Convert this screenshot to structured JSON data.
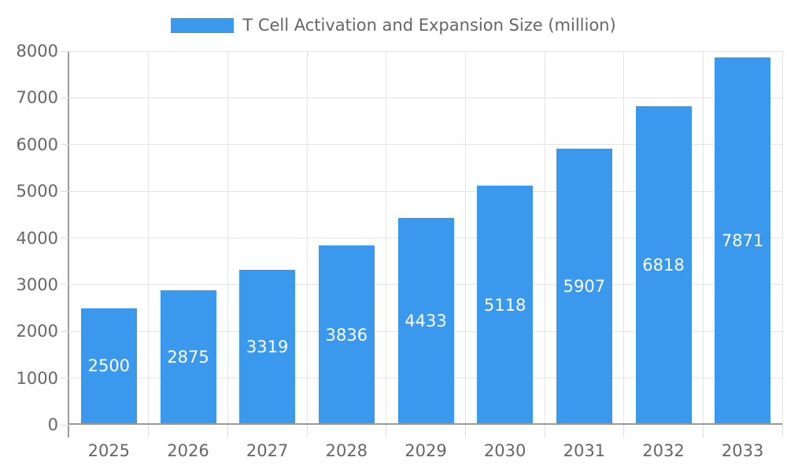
{
  "legend": {
    "position": "top",
    "swatch_color": "#3B99ED"
  },
  "chart_data": {
    "type": "bar",
    "title": "",
    "categories": [
      "2025",
      "2026",
      "2027",
      "2028",
      "2029",
      "2030",
      "2031",
      "2032",
      "2033"
    ],
    "series": [
      {
        "name": "T Cell Activation and Expansion Size (million)",
        "values": [
          2500,
          2875,
          3319,
          3836,
          4433,
          5118,
          5907,
          6818,
          7871
        ],
        "color": "#3B99ED"
      }
    ],
    "xlabel": "",
    "ylabel": "",
    "ylim": [
      0,
      8000
    ],
    "yticks": [
      0,
      1000,
      2000,
      3000,
      4000,
      5000,
      6000,
      7000,
      8000
    ],
    "grid": true,
    "legend_position": "top",
    "value_label_style": "inside-center-white",
    "colors": {
      "bar": "#3B99ED",
      "axis_text": "#666666",
      "grid_line": "#E4E4E4",
      "axis_line": "#9A9A9A",
      "value_label": "#FFFFFF",
      "background": "#FFFFFF"
    }
  }
}
